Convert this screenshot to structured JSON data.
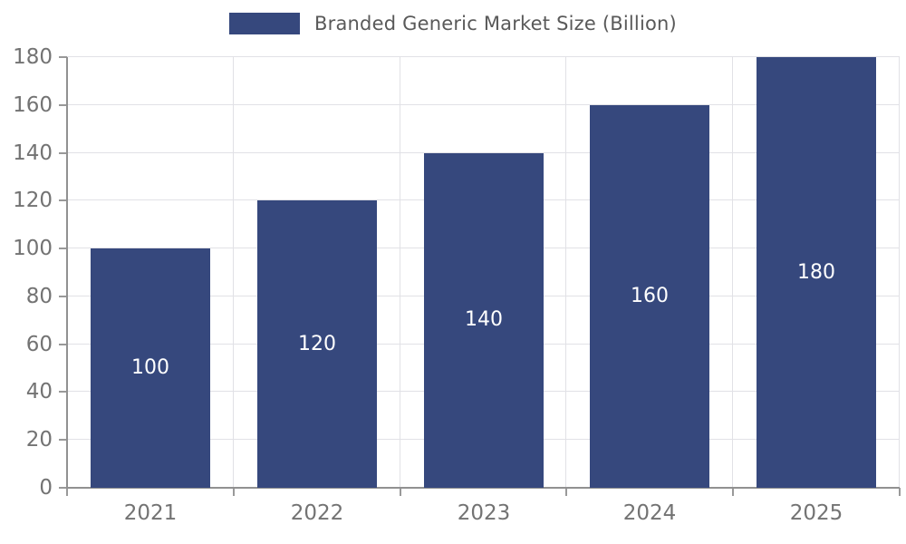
{
  "chart_data": {
    "type": "bar",
    "title": "Branded Generic Market Size (Billion)",
    "categories": [
      "2021",
      "2022",
      "2023",
      "2024",
      "2025"
    ],
    "values": [
      100,
      120,
      140,
      160,
      180
    ],
    "series": [
      {
        "name": "Branded Generic Market Size (Billion)",
        "values": [
          100,
          120,
          140,
          160,
          180
        ]
      }
    ],
    "data_labels": [
      "100",
      "120",
      "140",
      "160",
      "180"
    ],
    "xlabel": "",
    "ylabel": "",
    "ylim": [
      0,
      180
    ],
    "yticks": [
      0,
      20,
      40,
      60,
      80,
      100,
      120,
      140,
      160,
      180
    ],
    "grid": true,
    "legend_position": "top-center",
    "colors": {
      "bar": "#36487d",
      "bar_label": "#ffffff",
      "grid_line": "#e1e1e6",
      "axis_line": "#919191",
      "tick_mark": "#999999",
      "tick_label": "#737373",
      "legend_text": "#595959",
      "background": "#ffffff"
    }
  }
}
